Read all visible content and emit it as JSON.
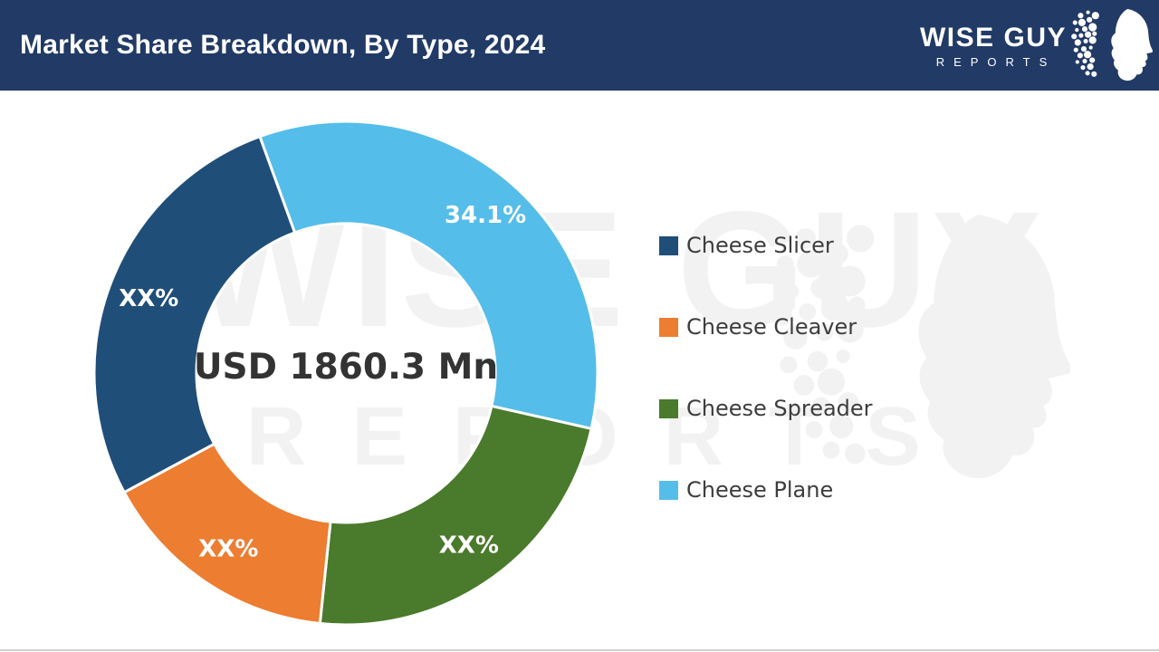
{
  "header": {
    "title": "Market Share Breakdown, By Type, 2024",
    "logo": {
      "line1": "WISE GUY",
      "line2": "REPORTS"
    }
  },
  "watermark": {
    "line1": "WISE GUY",
    "line2": "REPORTS"
  },
  "chart_data": {
    "type": "pie",
    "subtype": "donut",
    "title": "Market Share Breakdown, By Type, 2024",
    "center_label": "USD 1860.3 Mn",
    "start_angle_deg": -20,
    "direction": "clockwise",
    "legend_position": "right",
    "slices": [
      {
        "label": "Cheese Plane",
        "value_pct": 34.1,
        "display": "34.1%",
        "color": "#55bde9"
      },
      {
        "label": "Cheese Spreader",
        "value_pct": 23.1,
        "display": "XX%",
        "color": "#4a7a2b"
      },
      {
        "label": "Cheese Cleaver",
        "value_pct": 15.5,
        "display": "XX%",
        "color": "#ec7d31"
      },
      {
        "label": "Cheese Slicer",
        "value_pct": 27.3,
        "display": "XX%",
        "color": "#1f4e79"
      }
    ],
    "legend": [
      {
        "label": "Cheese Slicer",
        "color": "#1f4e79"
      },
      {
        "label": "Cheese Cleaver",
        "color": "#ec7d31"
      },
      {
        "label": "Cheese Spreader",
        "color": "#4a7a2b"
      },
      {
        "label": "Cheese Plane",
        "color": "#55bde9"
      }
    ]
  },
  "colors": {
    "header_bg": "#213a66",
    "watermark": "#f2f2f2",
    "center_text": "#333333",
    "legend_text": "#3d3d3d"
  }
}
